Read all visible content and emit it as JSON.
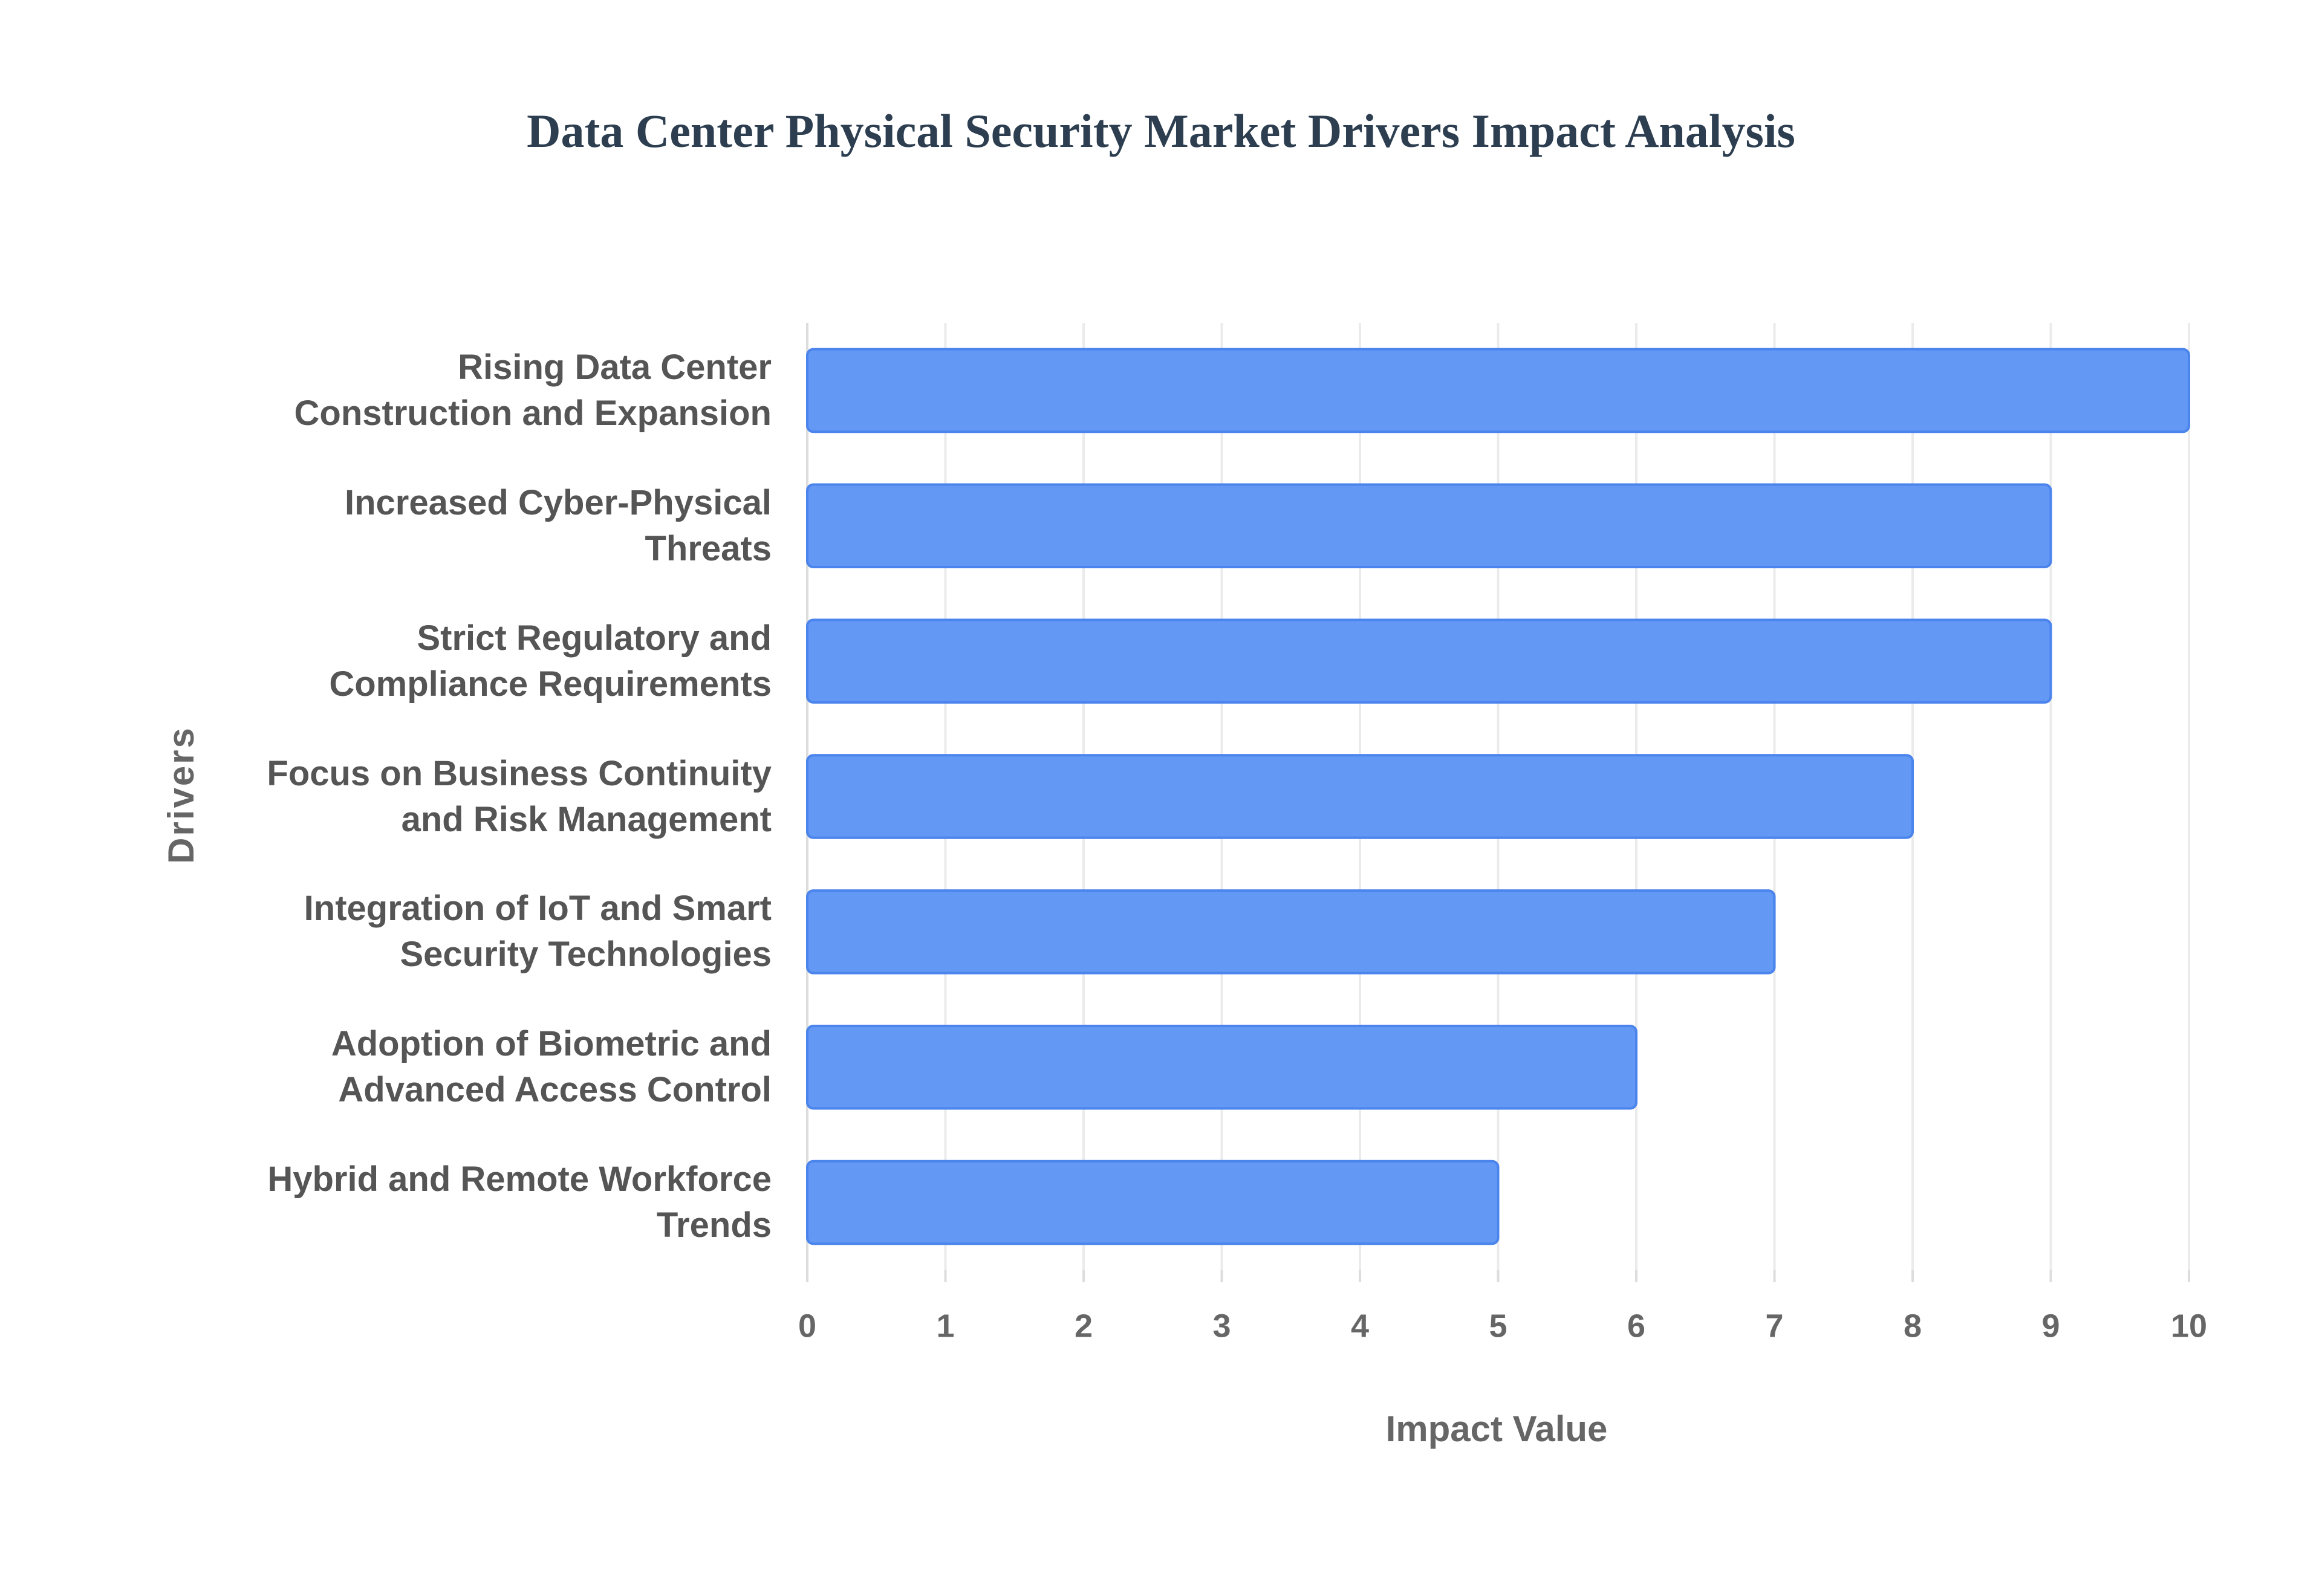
{
  "chart_data": {
    "type": "hbar",
    "title": "Data Center Physical Security Market Drivers Impact Analysis",
    "x_label": "Impact Value",
    "y_label": "Drivers",
    "categories": [
      "Rising Data Center Construction and Expansion",
      "Increased Cyber-Physical Threats",
      "Strict Regulatory and Compliance Requirements",
      "Focus on Business Continuity and Risk Management",
      "Integration of IoT and Smart Security Technologies",
      "Adoption of Biometric and Advanced Access Control",
      "Hybrid and Remote Workforce Trends"
    ],
    "values": [
      10,
      9,
      9,
      8,
      7,
      6,
      5
    ],
    "color": "#6399f5",
    "xlim": [
      0,
      10
    ],
    "xticks": [
      0,
      1,
      2,
      3,
      4,
      5,
      6,
      7,
      8,
      9,
      10
    ],
    "grid": true
  }
}
